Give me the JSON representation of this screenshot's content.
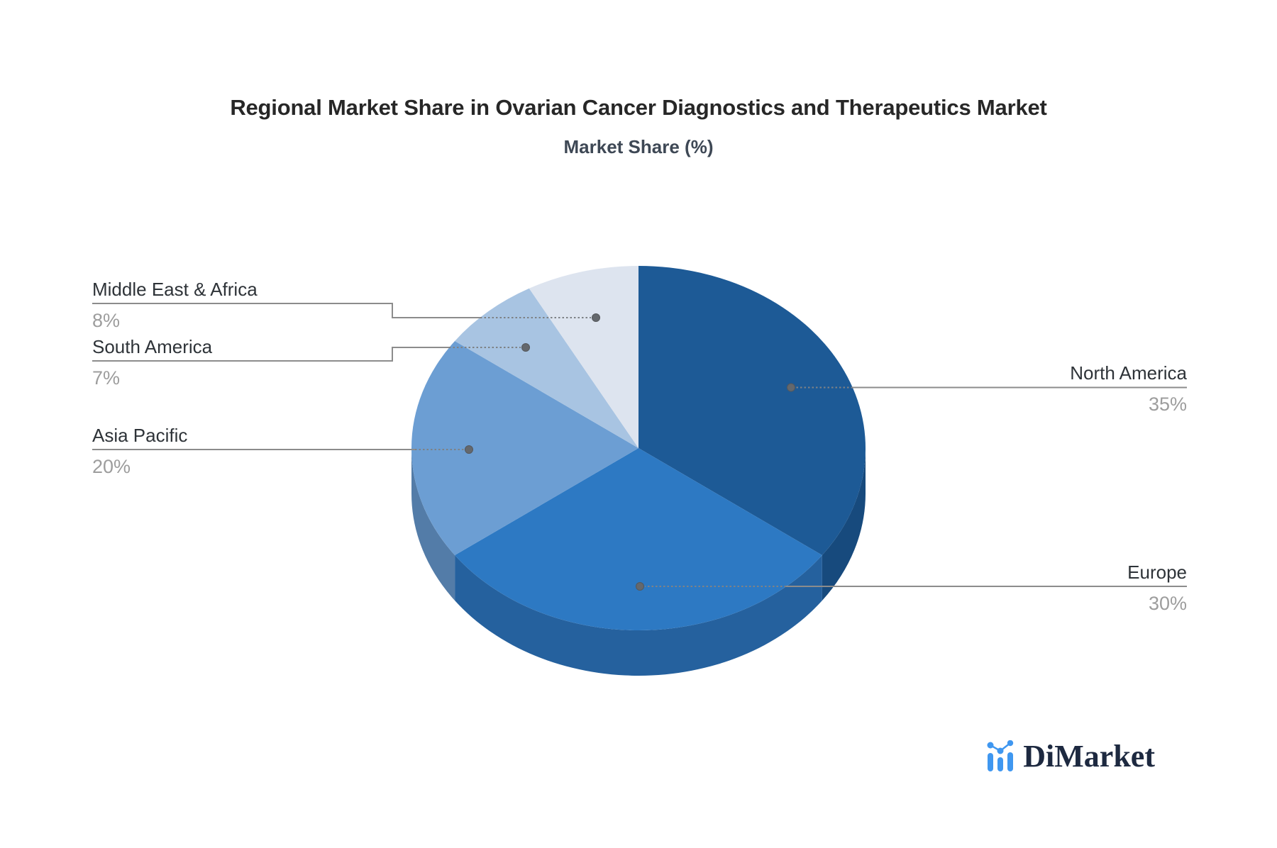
{
  "chart_data": {
    "type": "pie",
    "style": "3d",
    "title": "Regional Market Share in Ovarian Cancer Diagnostics and Therapeutics Market",
    "subtitle": "Market Share (%)",
    "unit": "%",
    "start_angle_deg": 0,
    "direction": "clockwise",
    "legend_position": "callout-labels",
    "slices": [
      {
        "label": "North America",
        "value": 35,
        "display": "35%",
        "color": "#1d5a96",
        "side_color": "#174a7d",
        "slug": "north-america"
      },
      {
        "label": "Europe",
        "value": 30,
        "display": "30%",
        "color": "#2d79c3",
        "side_color": "#25619e",
        "slug": "europe"
      },
      {
        "label": "Asia Pacific",
        "value": 20,
        "display": "20%",
        "color": "#6c9ed3",
        "side_color": "#537ca8",
        "slug": "asia-pacific"
      },
      {
        "label": "South America",
        "value": 7,
        "display": "7%",
        "color": "#a8c4e2",
        "side_color": "#8aa6c4",
        "slug": "south-america"
      },
      {
        "label": "Middle East & Africa",
        "value": 8,
        "display": "8%",
        "color": "#dde4ef",
        "side_color": "#b9c3d4",
        "slug": "middle-east-africa"
      }
    ],
    "callout_line_color": "#8c8c8c",
    "callout_dot_color": "#64686d",
    "label_text_color": "#2e3338",
    "value_text_color": "#9d9d9d"
  },
  "brand": {
    "name": "DiMarket",
    "icon": "bar-line-chart-icon",
    "icon_color": "#3f97f0",
    "text_color": "#1d2940"
  }
}
